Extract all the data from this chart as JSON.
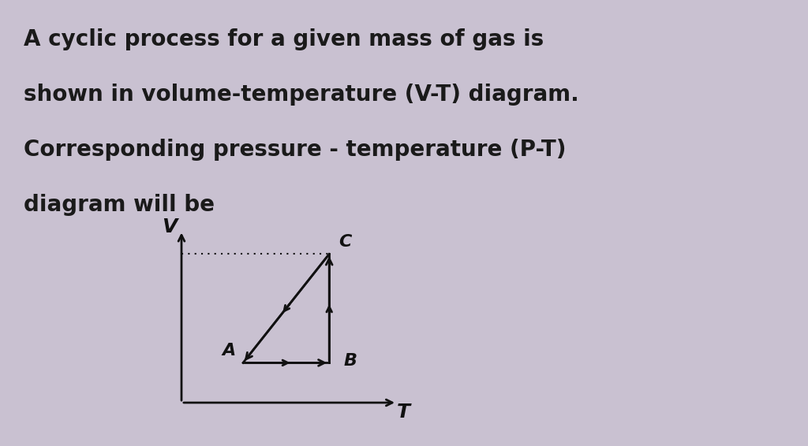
{
  "background_color": "#c9c1d1",
  "text_lines": [
    "A cyclic process for a given mass of gas is",
    "shown in volume-temperature (V-T) diagram.",
    "Corresponding pressure - temperature (P-T)",
    "diagram will be"
  ],
  "text_fontsize": 20,
  "text_color": "#1a1a1a",
  "diagram": {
    "A": [
      0.3,
      0.22
    ],
    "B": [
      0.72,
      0.22
    ],
    "C": [
      0.72,
      0.82
    ],
    "xlabel": "T",
    "ylabel": "V",
    "label_C": "C",
    "label_B": "B",
    "label_A": "A",
    "line_color": "#111111",
    "lw": 2.0
  }
}
